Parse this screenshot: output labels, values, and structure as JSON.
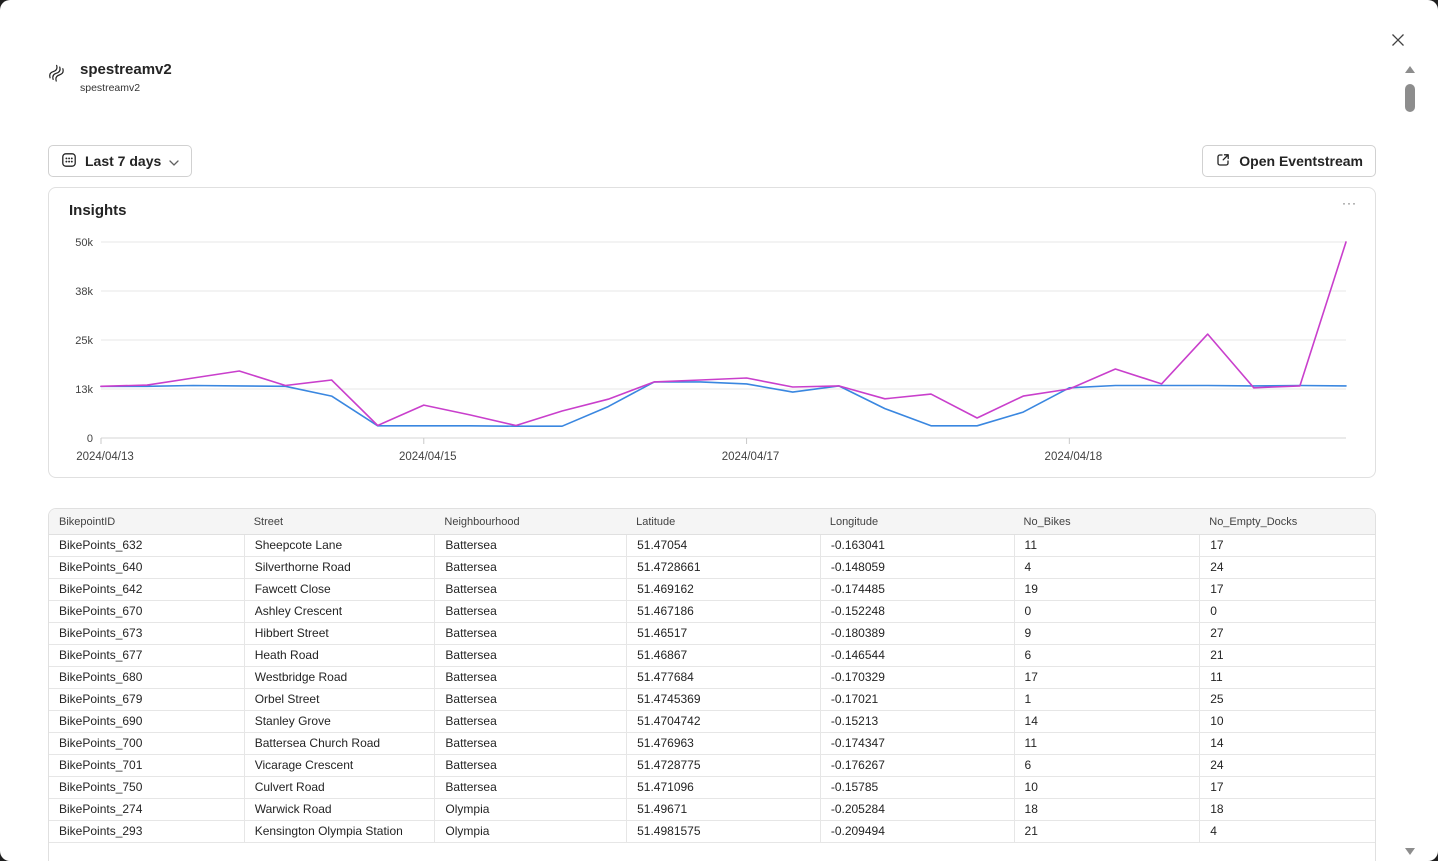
{
  "window": {
    "close_label": "Close"
  },
  "header": {
    "title": "spestreamv2",
    "subtitle": "spestreamv2"
  },
  "toolbar": {
    "time_range": {
      "label": "Last 7 days"
    },
    "open_button": {
      "label": "Open Eventstream"
    }
  },
  "insights": {
    "title": "Insights",
    "more_label": "···"
  },
  "chart_data": {
    "type": "line",
    "title": "Insights",
    "xlabel": "",
    "ylabel": "",
    "ylim": [
      0,
      50
    ],
    "unit": "thousands",
    "grid": "horizontal",
    "legend": "none",
    "point_count": 28,
    "x_tick_indices": [
      0,
      7,
      14,
      21
    ],
    "x_tick_labels": [
      "2024/04/13",
      "2024/04/15",
      "2024/04/17",
      "2024/04/18"
    ],
    "y_ticks": [
      {
        "value": 0,
        "label": "0"
      },
      {
        "value": 12.5,
        "label": "13k"
      },
      {
        "value": 25,
        "label": "25k"
      },
      {
        "value": 37.5,
        "label": "38k"
      },
      {
        "value": 50,
        "label": "50k"
      }
    ],
    "series": [
      {
        "name": "series-blue",
        "color": "#3a87e0",
        "values": [
          13.2,
          13.2,
          13.4,
          13.3,
          13.2,
          10.7,
          3.1,
          3.1,
          3.1,
          3.0,
          3.0,
          8.0,
          14.3,
          14.3,
          13.8,
          11.7,
          13.3,
          7.5,
          3.1,
          3.1,
          6.6,
          12.8,
          13.4,
          13.4,
          13.4,
          13.3,
          13.4,
          13.3
        ]
      },
      {
        "name": "series-magenta",
        "color": "#c93fcc",
        "values": [
          13.2,
          13.5,
          15.3,
          17.1,
          13.4,
          14.8,
          3.2,
          8.4,
          5.9,
          3.2,
          6.9,
          9.9,
          14.3,
          14.8,
          15.3,
          13.0,
          13.3,
          10.0,
          11.2,
          5.1,
          10.7,
          12.5,
          17.6,
          13.8,
          26.5,
          12.8,
          13.3,
          50.0
        ]
      }
    ]
  },
  "table": {
    "columns": [
      "BikepointID",
      "Street",
      "Neighbourhood",
      "Latitude",
      "Longitude",
      "No_Bikes",
      "No_Empty_Docks"
    ],
    "rows": [
      [
        "BikePoints_632",
        "Sheepcote Lane",
        "Battersea",
        "51.47054",
        "-0.163041",
        "11",
        "17"
      ],
      [
        "BikePoints_640",
        "Silverthorne Road",
        "Battersea",
        "51.4728661",
        "-0.148059",
        "4",
        "24"
      ],
      [
        "BikePoints_642",
        "Fawcett Close",
        "Battersea",
        "51.469162",
        "-0.174485",
        "19",
        "17"
      ],
      [
        "BikePoints_670",
        "Ashley Crescent",
        "Battersea",
        "51.467186",
        "-0.152248",
        "0",
        "0"
      ],
      [
        "BikePoints_673",
        "Hibbert Street",
        "Battersea",
        "51.46517",
        "-0.180389",
        "9",
        "27"
      ],
      [
        "BikePoints_677",
        "Heath Road",
        "Battersea",
        "51.46867",
        "-0.146544",
        "6",
        "21"
      ],
      [
        "BikePoints_680",
        "Westbridge Road",
        "Battersea",
        "51.477684",
        "-0.170329",
        "17",
        "11"
      ],
      [
        "BikePoints_679",
        "Orbel Street",
        "Battersea",
        "51.4745369",
        "-0.17021",
        "1",
        "25"
      ],
      [
        "BikePoints_690",
        "Stanley Grove",
        "Battersea",
        "51.4704742",
        "-0.15213",
        "14",
        "10"
      ],
      [
        "BikePoints_700",
        "Battersea Church Road",
        "Battersea",
        "51.476963",
        "-0.174347",
        "11",
        "14"
      ],
      [
        "BikePoints_701",
        "Vicarage Crescent",
        "Battersea",
        "51.4728775",
        "-0.176267",
        "6",
        "24"
      ],
      [
        "BikePoints_750",
        "Culvert Road",
        "Battersea",
        "51.471096",
        "-0.15785",
        "10",
        "17"
      ],
      [
        "BikePoints_274",
        "Warwick Road",
        "Olympia",
        "51.49671",
        "-0.205284",
        "18",
        "18"
      ],
      [
        "BikePoints_293",
        "Kensington Olympia Station",
        "Olympia",
        "51.4981575",
        "-0.209494",
        "21",
        "4"
      ]
    ]
  }
}
